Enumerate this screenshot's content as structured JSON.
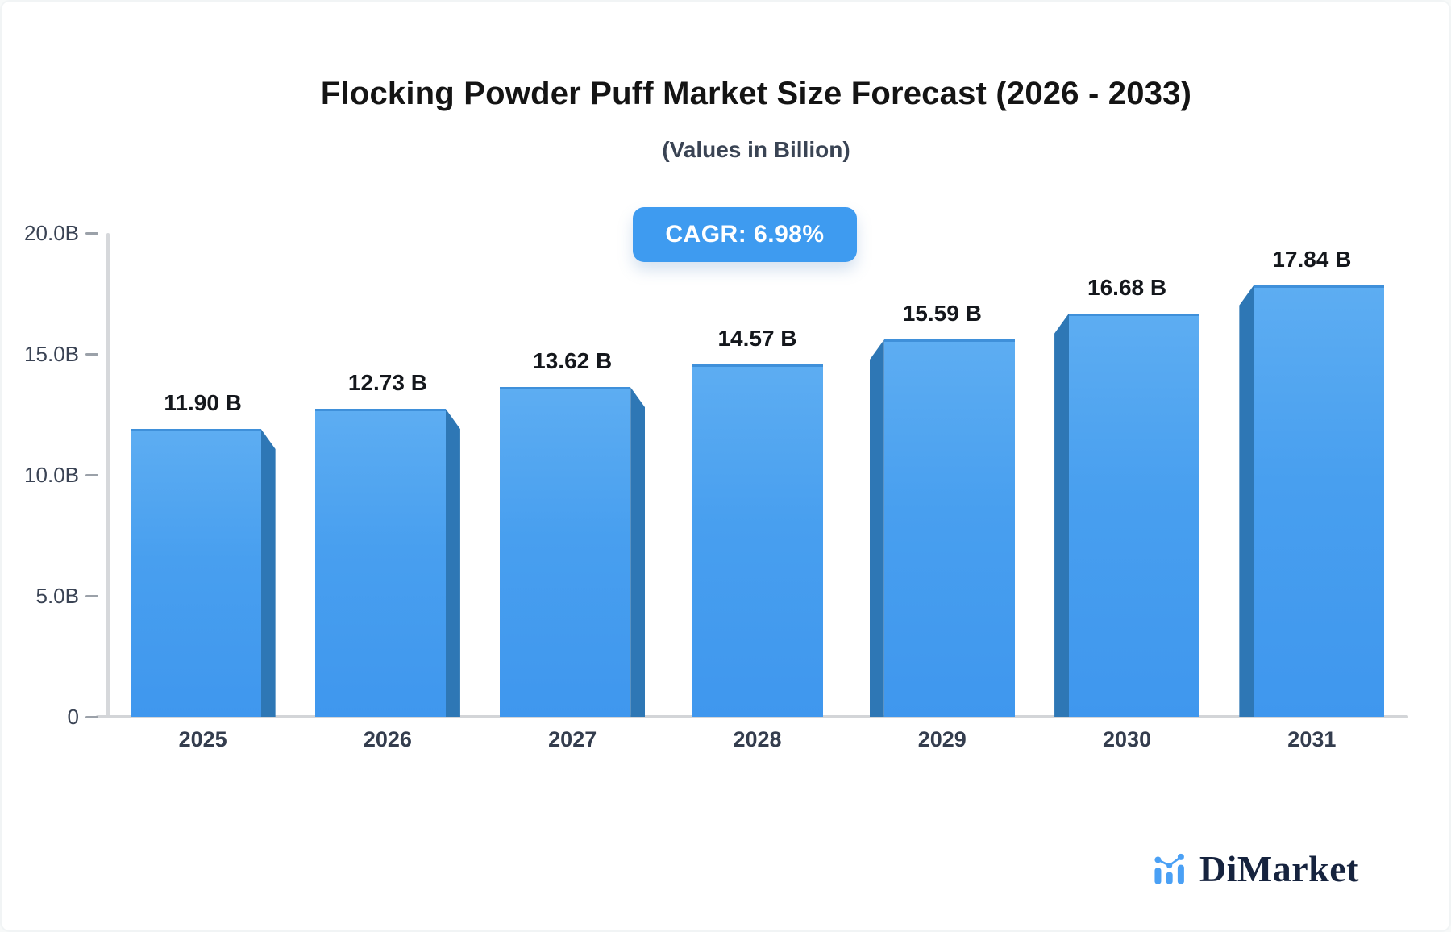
{
  "chart_data": {
    "type": "bar",
    "title": "Flocking Powder Puff Market Size Forecast (2026 - 2033)",
    "subtitle": "(Values in Billion)",
    "cagr_label": "CAGR: 6.98%",
    "categories": [
      "2025",
      "2026",
      "2027",
      "2028",
      "2029",
      "2030",
      "2031"
    ],
    "values": [
      11.9,
      12.73,
      13.62,
      14.57,
      15.59,
      16.68,
      17.84
    ],
    "value_labels": [
      "11.90 B",
      "12.73 B",
      "13.62 B",
      "14.57 B",
      "15.59 B",
      "16.68 B",
      "17.84 B"
    ],
    "ytick_labels": [
      "20.0B",
      "15.0B",
      "10.0B",
      "5.0B",
      "0"
    ],
    "ytick_values": [
      20,
      15,
      10,
      5,
      0
    ],
    "ylim": [
      0,
      20
    ],
    "grid": false,
    "legend": "none"
  },
  "colors": {
    "badge_bg": "#3e9bf0",
    "badge_text": "#ffffff",
    "bar_fill_top": "#5dadf2",
    "bar_fill_bottom": "#3f97ee",
    "bar_side": "#2e77b5",
    "bar_top_edge": "#3f90da",
    "axis_line": "#d5d7da",
    "tick_color": "#9ba1a9",
    "axis_label_color": "#3a4354",
    "title_color": "#141414",
    "logo_blue": "#4aa0f5",
    "logo_text_color": "#16233e"
  },
  "branding": {
    "logo_text": "DiMarket",
    "logo_icon": "bar-chart-logo-icon"
  }
}
